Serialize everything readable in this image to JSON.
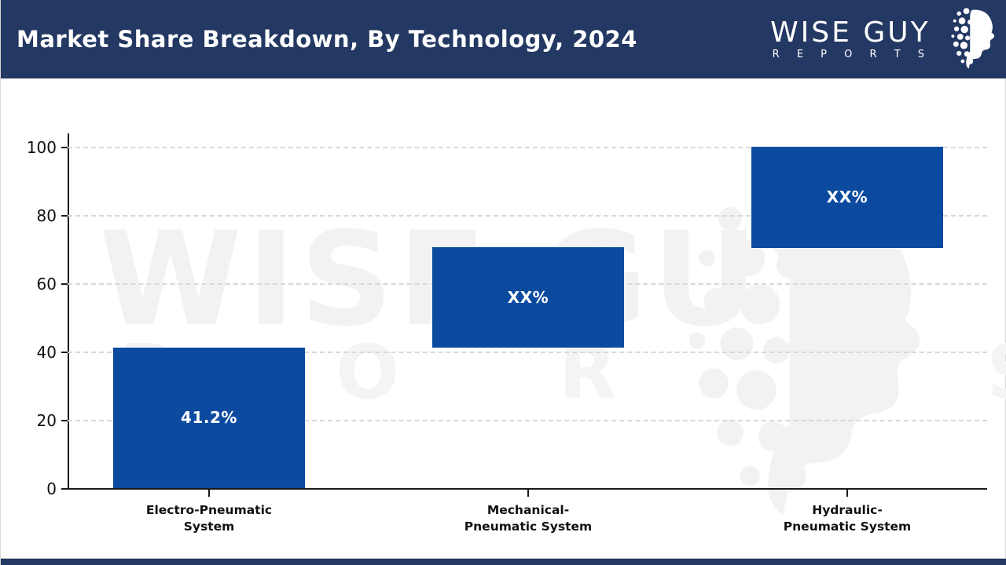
{
  "header": {
    "title": "Market Share Breakdown, By Technology, 2024",
    "bg_color": "#233862",
    "logo": {
      "line1": "WISE GUY",
      "line2": "R E P O R T S"
    }
  },
  "watermark": {
    "line1": "WISE GUY",
    "line2": "R O R T S"
  },
  "footer": {
    "bg_color": "#233862"
  },
  "chart_data": {
    "type": "bar",
    "subtype": "floating-range-waterfall",
    "title": "Market Share Breakdown, By Technology, 2024",
    "xlabel": "",
    "ylabel": "",
    "ylim": [
      0,
      104
    ],
    "grid": "dashed-horizontal",
    "legend": "none",
    "bar_color": "#0c4aa0",
    "bar_label_color": "#ffffff",
    "yticks": [
      0,
      20,
      40,
      60,
      80,
      100
    ],
    "categories": [
      [
        "Electro-Pneumatic",
        "System"
      ],
      [
        "Mechanical-",
        "Pneumatic System"
      ],
      [
        "Hydraulic-",
        "Pneumatic System"
      ]
    ],
    "segments": [
      {
        "start": 0,
        "end": 41.2,
        "label": "41.2%"
      },
      {
        "start": 41.2,
        "end": 70.6,
        "label": "XX%"
      },
      {
        "start": 70.4,
        "end": 100,
        "label": "XX%"
      }
    ]
  }
}
